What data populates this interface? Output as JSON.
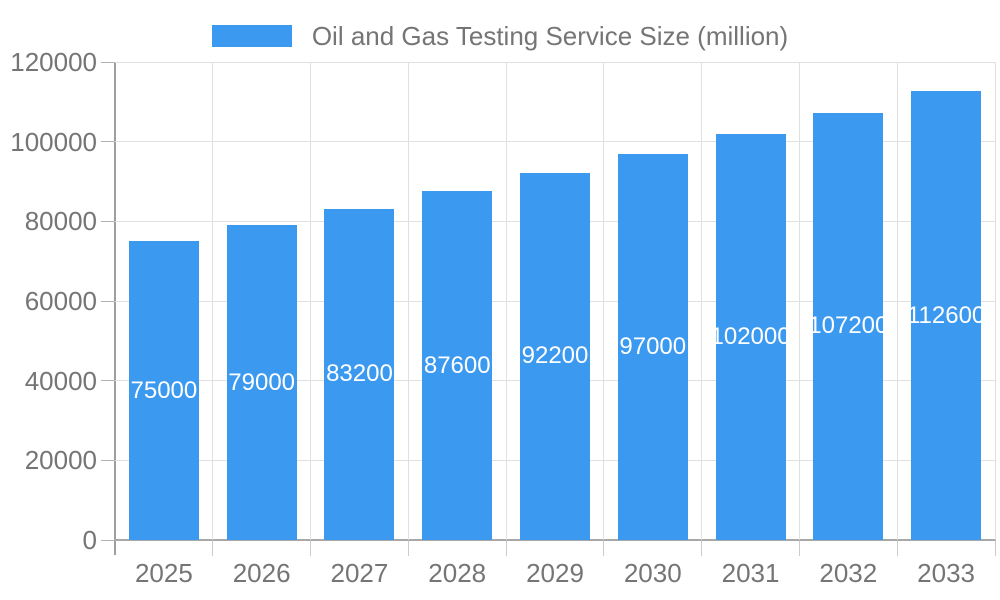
{
  "legend": {
    "label": "Oil and Gas Testing Service Size (million)"
  },
  "chart_data": {
    "type": "bar",
    "title": "Oil and Gas Testing Service Size (million)",
    "categories": [
      "2025",
      "2026",
      "2027",
      "2028",
      "2029",
      "2030",
      "2031",
      "2032",
      "2033"
    ],
    "series": [
      {
        "name": "Oil and Gas Testing Service Size (million)",
        "values": [
          75000,
          79000,
          83200,
          87600,
          92200,
          97000,
          102000,
          107200,
          112600
        ]
      }
    ],
    "values": [
      75000,
      79000,
      83200,
      87600,
      92200,
      97000,
      102000,
      107200,
      112600
    ],
    "xlabel": "",
    "ylabel": "",
    "ylim": [
      0,
      120000
    ],
    "yticks": [
      0,
      20000,
      40000,
      60000,
      80000,
      100000,
      120000
    ],
    "grid": true,
    "legend_position": "top-center",
    "bar_color": "#3B99F0",
    "value_label_color": "#FFFFFF",
    "axis_label_color": "#757575"
  }
}
